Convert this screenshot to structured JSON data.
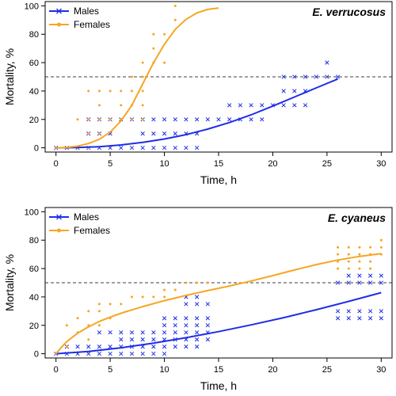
{
  "chart_data": [
    {
      "type": "scatter",
      "title": "E. verrucosus",
      "xlabel": "Time, h",
      "ylabel": "Mortality, %",
      "xlim": [
        -1,
        31
      ],
      "ylim": [
        -3,
        103
      ],
      "xticks": [
        0,
        5,
        10,
        15,
        20,
        25,
        30
      ],
      "yticks": [
        0,
        20,
        40,
        60,
        80,
        100
      ],
      "reference_line": 50,
      "legend": "top-left",
      "series": [
        {
          "name": "Males",
          "marker": "x",
          "color": "#1f2ee6",
          "points": [
            [
              0,
              0
            ],
            [
              1,
              0
            ],
            [
              2,
              0
            ],
            [
              3,
              0
            ],
            [
              4,
              0
            ],
            [
              5,
              0
            ],
            [
              6,
              0
            ],
            [
              7,
              0
            ],
            [
              8,
              0
            ],
            [
              9,
              0
            ],
            [
              10,
              0
            ],
            [
              11,
              0
            ],
            [
              12,
              0
            ],
            [
              13,
              0
            ],
            [
              3,
              10
            ],
            [
              4,
              10
            ],
            [
              5,
              10
            ],
            [
              8,
              10
            ],
            [
              9,
              10
            ],
            [
              10,
              10
            ],
            [
              11,
              10
            ],
            [
              12,
              10
            ],
            [
              13,
              10
            ],
            [
              3,
              20
            ],
            [
              4,
              20
            ],
            [
              5,
              20
            ],
            [
              6,
              20
            ],
            [
              7,
              20
            ],
            [
              8,
              20
            ],
            [
              9,
              20
            ],
            [
              10,
              20
            ],
            [
              11,
              20
            ],
            [
              12,
              20
            ],
            [
              13,
              20
            ],
            [
              14,
              20
            ],
            [
              15,
              20
            ],
            [
              16,
              20
            ],
            [
              17,
              20
            ],
            [
              18,
              20
            ],
            [
              19,
              20
            ],
            [
              16,
              30
            ],
            [
              17,
              30
            ],
            [
              18,
              30
            ],
            [
              19,
              30
            ],
            [
              20,
              30
            ],
            [
              21,
              30
            ],
            [
              22,
              30
            ],
            [
              23,
              30
            ],
            [
              21,
              40
            ],
            [
              22,
              40
            ],
            [
              23,
              40
            ],
            [
              21,
              50
            ],
            [
              22,
              50
            ],
            [
              23,
              50
            ],
            [
              24,
              50
            ],
            [
              25,
              50
            ],
            [
              26,
              50
            ],
            [
              25,
              60
            ]
          ],
          "fit": [
            [
              0,
              0
            ],
            [
              2,
              0.2
            ],
            [
              4,
              0.8
            ],
            [
              6,
              2.0
            ],
            [
              8,
              3.8
            ],
            [
              10,
              6.2
            ],
            [
              12,
              9.3
            ],
            [
              14,
              13.2
            ],
            [
              16,
              17.8
            ],
            [
              18,
              23.2
            ],
            [
              20,
              29.4
            ],
            [
              22,
              35.8
            ],
            [
              24,
              42.2
            ],
            [
              26,
              48.5
            ]
          ]
        },
        {
          "name": "Females",
          "marker": "dot",
          "color": "#f5a623",
          "points": [
            [
              0,
              0
            ],
            [
              1,
              0
            ],
            [
              2,
              0
            ],
            [
              3,
              0
            ],
            [
              3,
              10
            ],
            [
              4,
              10
            ],
            [
              2,
              20
            ],
            [
              3,
              20
            ],
            [
              4,
              20
            ],
            [
              5,
              20
            ],
            [
              6,
              20
            ],
            [
              7,
              20
            ],
            [
              8,
              20
            ],
            [
              4,
              30
            ],
            [
              6,
              30
            ],
            [
              7,
              30
            ],
            [
              8,
              30
            ],
            [
              3,
              40
            ],
            [
              4,
              40
            ],
            [
              5,
              40
            ],
            [
              6,
              40
            ],
            [
              7,
              40
            ],
            [
              8,
              40
            ],
            [
              7,
              50
            ],
            [
              8,
              50
            ],
            [
              8,
              60
            ],
            [
              9,
              60
            ],
            [
              10,
              60
            ],
            [
              9,
              70
            ],
            [
              9,
              80
            ],
            [
              10,
              80
            ],
            [
              11,
              90
            ],
            [
              11,
              100
            ]
          ],
          "fit": [
            [
              0,
              0
            ],
            [
              1,
              0.3
            ],
            [
              2,
              1.2
            ],
            [
              3,
              3.0
            ],
            [
              4,
              6.0
            ],
            [
              5,
              11.0
            ],
            [
              6,
              19.0
            ],
            [
              7,
              30.0
            ],
            [
              8,
              45.0
            ],
            [
              9,
              60.0
            ],
            [
              10,
              73.0
            ],
            [
              11,
              83.5
            ],
            [
              12,
              90.5
            ],
            [
              13,
              95.0
            ],
            [
              14,
              97.5
            ],
            [
              15,
              98.5
            ]
          ]
        }
      ]
    },
    {
      "type": "scatter",
      "title": "E. cyaneus",
      "xlabel": "Time, h",
      "ylabel": "Mortality, %",
      "xlim": [
        -1,
        31
      ],
      "ylim": [
        -3,
        103
      ],
      "xticks": [
        0,
        5,
        10,
        15,
        20,
        25,
        30
      ],
      "yticks": [
        0,
        20,
        40,
        60,
        80,
        100
      ],
      "reference_line": 50,
      "legend": "top-left",
      "series": [
        {
          "name": "Males",
          "marker": "x",
          "color": "#1f2ee6",
          "points": [
            [
              0,
              0
            ],
            [
              1,
              0
            ],
            [
              2,
              0
            ],
            [
              3,
              0
            ],
            [
              4,
              0
            ],
            [
              5,
              0
            ],
            [
              6,
              0
            ],
            [
              7,
              0
            ],
            [
              8,
              0
            ],
            [
              9,
              0
            ],
            [
              10,
              0
            ],
            [
              1,
              5
            ],
            [
              2,
              5
            ],
            [
              3,
              5
            ],
            [
              4,
              5
            ],
            [
              5,
              5
            ],
            [
              6,
              5
            ],
            [
              7,
              5
            ],
            [
              8,
              5
            ],
            [
              9,
              5
            ],
            [
              10,
              5
            ],
            [
              11,
              5
            ],
            [
              12,
              5
            ],
            [
              13,
              5
            ],
            [
              6,
              10
            ],
            [
              7,
              10
            ],
            [
              8,
              10
            ],
            [
              9,
              10
            ],
            [
              10,
              10
            ],
            [
              11,
              10
            ],
            [
              12,
              10
            ],
            [
              13,
              10
            ],
            [
              14,
              10
            ],
            [
              4,
              15
            ],
            [
              5,
              15
            ],
            [
              6,
              15
            ],
            [
              7,
              15
            ],
            [
              8,
              15
            ],
            [
              9,
              15
            ],
            [
              10,
              15
            ],
            [
              11,
              15
            ],
            [
              12,
              15
            ],
            [
              13,
              15
            ],
            [
              14,
              15
            ],
            [
              10,
              20
            ],
            [
              11,
              20
            ],
            [
              12,
              20
            ],
            [
              13,
              20
            ],
            [
              14,
              20
            ],
            [
              10,
              25
            ],
            [
              11,
              25
            ],
            [
              12,
              25
            ],
            [
              13,
              25
            ],
            [
              14,
              25
            ],
            [
              12,
              35
            ],
            [
              13,
              35
            ],
            [
              14,
              35
            ],
            [
              12,
              40
            ],
            [
              13,
              40
            ],
            [
              26,
              25
            ],
            [
              27,
              25
            ],
            [
              28,
              25
            ],
            [
              29,
              25
            ],
            [
              30,
              25
            ],
            [
              26,
              30
            ],
            [
              27,
              30
            ],
            [
              28,
              30
            ],
            [
              29,
              30
            ],
            [
              30,
              30
            ],
            [
              26,
              50
            ],
            [
              27,
              50
            ],
            [
              28,
              50
            ],
            [
              29,
              50
            ],
            [
              30,
              50
            ],
            [
              27,
              55
            ],
            [
              28,
              55
            ],
            [
              29,
              55
            ],
            [
              30,
              55
            ]
          ],
          "fit": [
            [
              0,
              0
            ],
            [
              3,
              1.6
            ],
            [
              6,
              4.2
            ],
            [
              9,
              7.5
            ],
            [
              12,
              11.3
            ],
            [
              15,
              15.6
            ],
            [
              18,
              20.3
            ],
            [
              21,
              25.4
            ],
            [
              24,
              31.0
            ],
            [
              27,
              36.9
            ],
            [
              30,
              43.0
            ]
          ]
        },
        {
          "name": "Females",
          "marker": "dot",
          "color": "#f5a623",
          "points": [
            [
              0,
              0
            ],
            [
              1,
              5
            ],
            [
              1,
              20
            ],
            [
              2,
              15
            ],
            [
              2,
              25
            ],
            [
              3,
              10
            ],
            [
              3,
              20
            ],
            [
              3,
              30
            ],
            [
              4,
              20
            ],
            [
              4,
              30
            ],
            [
              4,
              35
            ],
            [
              5,
              25
            ],
            [
              5,
              35
            ],
            [
              6,
              35
            ],
            [
              7,
              40
            ],
            [
              8,
              40
            ],
            [
              9,
              40
            ],
            [
              10,
              40
            ],
            [
              10,
              45
            ],
            [
              11,
              45
            ],
            [
              12,
              50
            ],
            [
              13,
              50
            ],
            [
              14,
              50
            ],
            [
              26,
              60
            ],
            [
              27,
              60
            ],
            [
              28,
              60
            ],
            [
              29,
              60
            ],
            [
              26,
              65
            ],
            [
              27,
              65
            ],
            [
              28,
              65
            ],
            [
              29,
              65
            ],
            [
              26,
              70
            ],
            [
              27,
              70
            ],
            [
              28,
              70
            ],
            [
              29,
              70
            ],
            [
              30,
              70
            ],
            [
              26,
              75
            ],
            [
              27,
              75
            ],
            [
              28,
              75
            ],
            [
              29,
              75
            ],
            [
              30,
              75
            ],
            [
              30,
              80
            ]
          ],
          "fit": [
            [
              0,
              0
            ],
            [
              0.5,
              4.5
            ],
            [
              1,
              8.6
            ],
            [
              2,
              14.5
            ],
            [
              3,
              19.0
            ],
            [
              4,
              22.7
            ],
            [
              5,
              25.8
            ],
            [
              6,
              28.5
            ],
            [
              8,
              33.2
            ],
            [
              10,
              37.4
            ],
            [
              12,
              41.1
            ],
            [
              14,
              44.5
            ],
            [
              16,
              47.7
            ],
            [
              18,
              51.2
            ],
            [
              20,
              55.0
            ],
            [
              22,
              59.0
            ],
            [
              24,
              62.8
            ],
            [
              26,
              66.0
            ],
            [
              28,
              68.6
            ],
            [
              30,
              70.5
            ]
          ]
        }
      ]
    }
  ]
}
